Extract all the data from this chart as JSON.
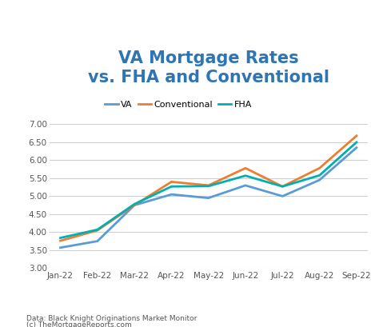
{
  "title": "VA Mortgage Rates\nvs. FHA and Conventional",
  "title_color": "#2e75b6",
  "title_fontsize": 15,
  "title_fontweight": "bold",
  "x_labels": [
    "Jan-22",
    "Feb-22",
    "Mar-22",
    "Apr-22",
    "May-22",
    "Jun-22",
    "Jul-22",
    "Aug-22",
    "Sep-22"
  ],
  "va_values": [
    3.57,
    3.75,
    4.75,
    5.05,
    4.95,
    5.3,
    5.0,
    5.45,
    6.35
  ],
  "conventional_values": [
    3.76,
    4.05,
    4.75,
    5.4,
    5.3,
    5.78,
    5.27,
    5.78,
    6.68
  ],
  "fha_values": [
    3.84,
    4.07,
    4.78,
    5.27,
    5.28,
    5.57,
    5.27,
    5.58,
    6.5
  ],
  "va_color": "#5b9bd5",
  "conventional_color": "#ed7d31",
  "fha_color": "#00b0b0",
  "ylim": [
    3.0,
    7.0
  ],
  "yticks": [
    3.0,
    3.5,
    4.0,
    4.5,
    5.0,
    5.5,
    6.0,
    6.5,
    7.0
  ],
  "legend_labels": [
    "VA",
    "Conventional",
    "FHA"
  ],
  "footnote_line1": "Data: Black Knight Originations Market Monitor",
  "footnote_line2": "(c) TheMortgageReports.com",
  "background_color": "#ffffff",
  "grid_color": "#d0d0d0",
  "line_width": 2.0
}
